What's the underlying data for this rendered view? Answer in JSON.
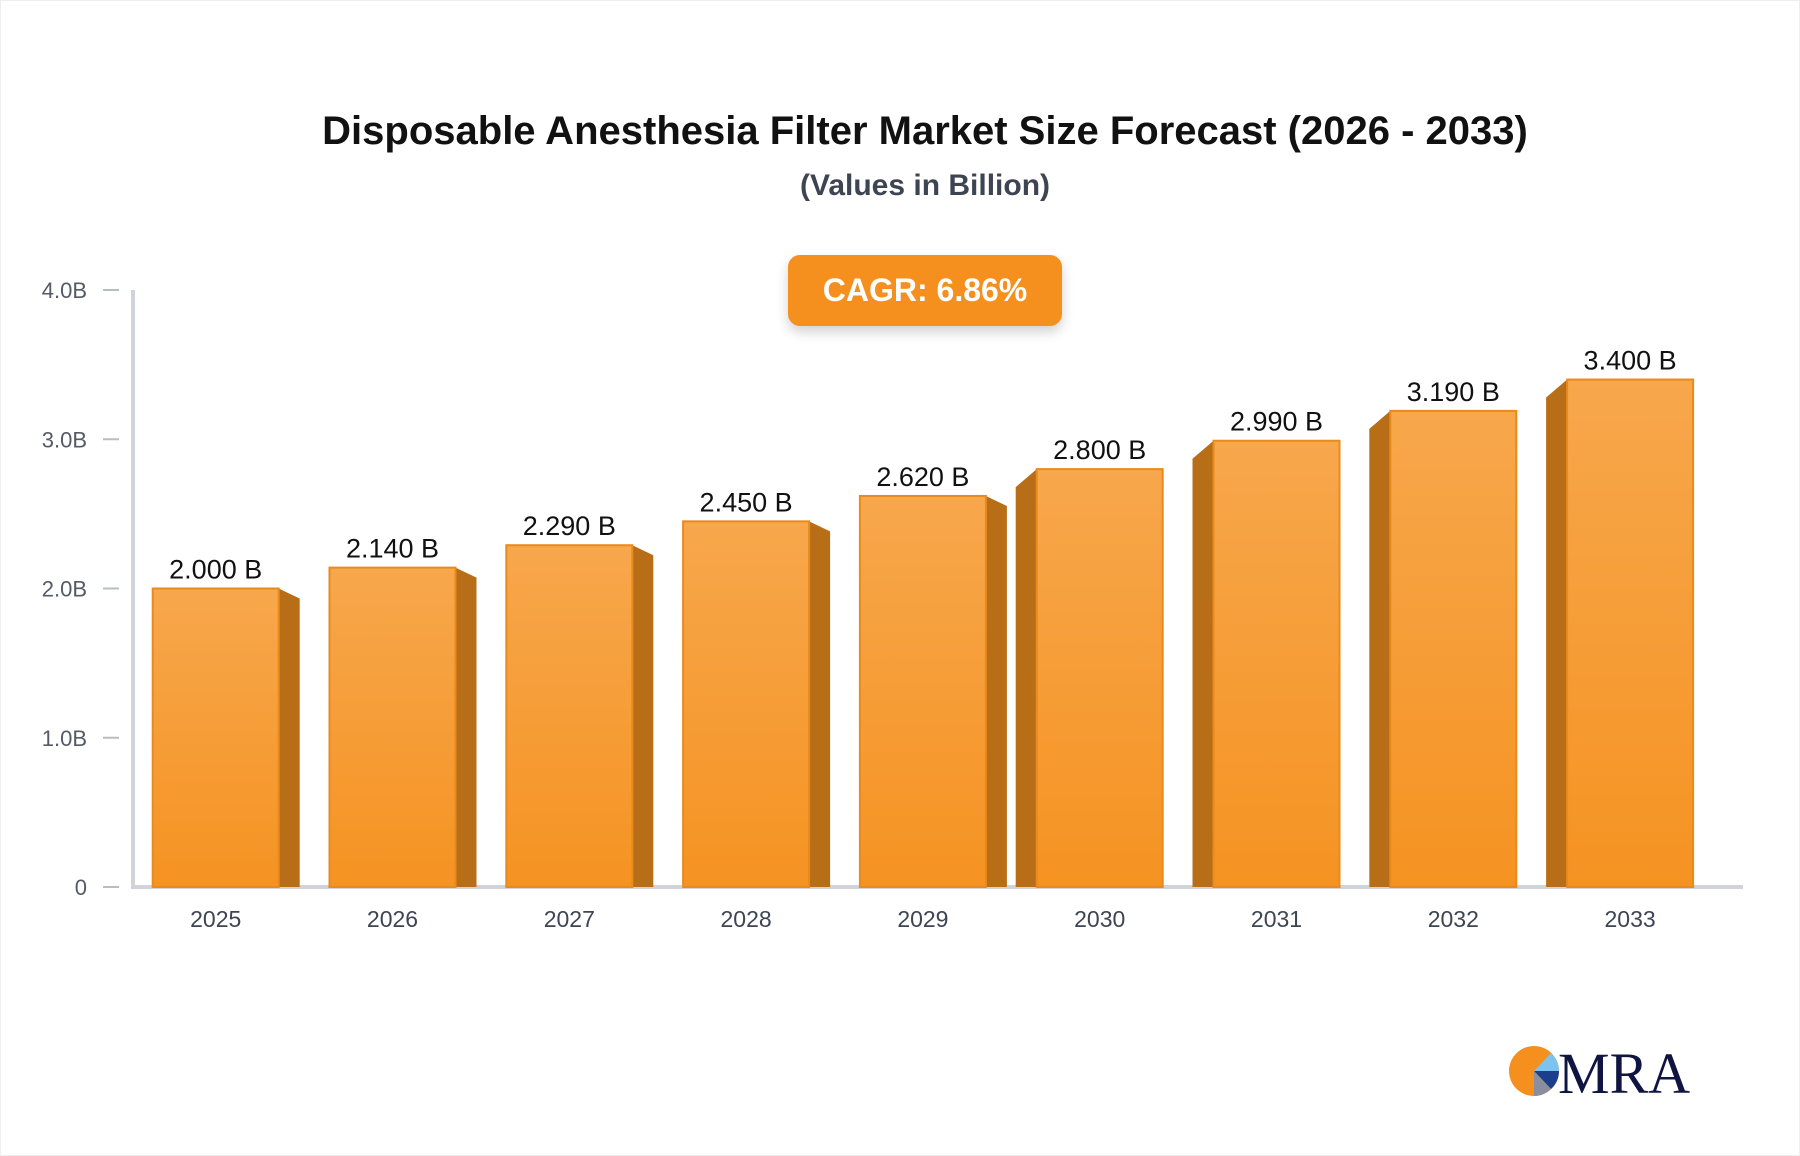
{
  "chart_data": {
    "type": "bar",
    "title": "Disposable Anesthesia Filter Market Size Forecast (2026 - 2033)",
    "subtitle": "(Values in Billion)",
    "categories": [
      "2025",
      "2026",
      "2027",
      "2028",
      "2029",
      "2030",
      "2031",
      "2032",
      "2033"
    ],
    "values": [
      2.0,
      2.14,
      2.29,
      2.45,
      2.62,
      2.8,
      2.99,
      3.19,
      3.4
    ],
    "data_labels": [
      "2.000 B",
      "2.140 B",
      "2.290 B",
      "2.450 B",
      "2.620 B",
      "2.800 B",
      "2.990 B",
      "3.190 B",
      "3.400 B"
    ],
    "yticks": [
      0,
      1,
      2,
      3,
      4
    ],
    "ytick_labels": [
      "0",
      "1.0B",
      "2.0B",
      "3.0B",
      "4.0B"
    ],
    "ylim": [
      0,
      4
    ],
    "grid": false,
    "annotation": "CAGR: 6.86%",
    "colors": {
      "bar_front": "#f7a54a",
      "bar_bottom": "#f59322",
      "bar_side": "#b86d17",
      "accent": "#f5901e"
    }
  },
  "logo": {
    "text": "MRA"
  }
}
